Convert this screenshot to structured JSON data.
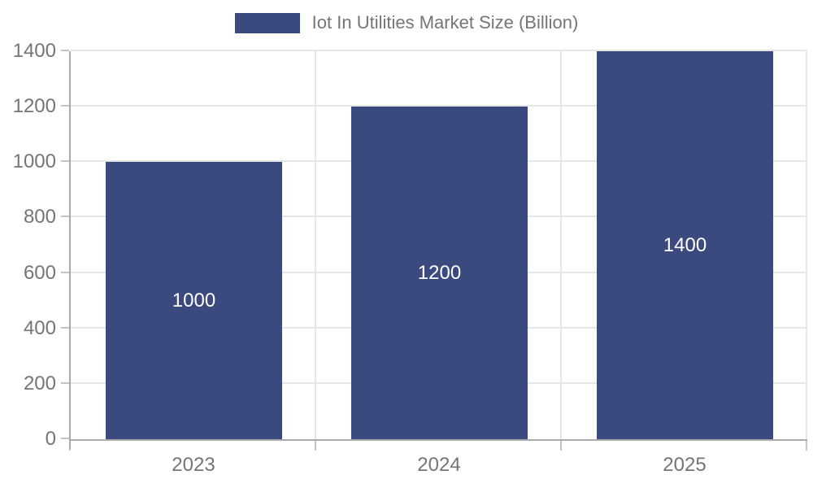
{
  "chart_data": {
    "type": "bar",
    "title": "Iot In Utilities Market Size (Billion)",
    "legend": {
      "label": "Iot In Utilities Market Size (Billion)",
      "position": "top-center"
    },
    "categories": [
      "2023",
      "2024",
      "2025"
    ],
    "series": [
      {
        "name": "Iot In Utilities Market Size (Billion)",
        "values": [
          1000,
          1200,
          1400
        ]
      }
    ],
    "bar_value_labels": [
      "1000",
      "1200",
      "1400"
    ],
    "xlabel": "",
    "ylabel": "",
    "ylim": [
      0,
      1400
    ],
    "yticks": [
      0,
      200,
      400,
      600,
      800,
      1000,
      1200,
      1400
    ],
    "grid": true,
    "colors": {
      "bar": "#3a4a7e",
      "grid_line": "#e6e6e6",
      "axis_line": "#aaaaaa",
      "tick_mark": "#c4c4c4",
      "tick_text": "#757575",
      "legend_text": "#757575",
      "value_label": "#ffffff",
      "background": "#ffffff"
    }
  }
}
